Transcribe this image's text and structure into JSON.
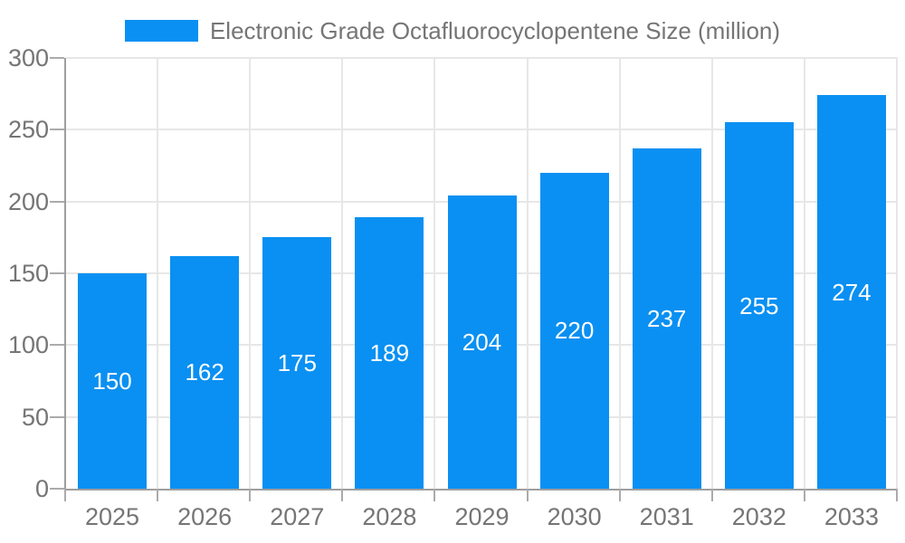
{
  "chart_data": {
    "type": "bar",
    "title": "Electronic Grade Octafluorocyclopentene Size (million)",
    "categories": [
      "2025",
      "2026",
      "2027",
      "2028",
      "2029",
      "2030",
      "2031",
      "2032",
      "2033"
    ],
    "values": [
      150,
      162,
      175,
      189,
      204,
      220,
      237,
      255,
      274
    ],
    "xlabel": "",
    "ylabel": "",
    "ylim": [
      0,
      300
    ],
    "ytick_step": 50,
    "yticks": [
      "0",
      "50",
      "100",
      "150",
      "200",
      "250",
      "300"
    ],
    "grid": true,
    "legend_position": "top-center",
    "colors": {
      "bar": "#0A90F2",
      "bar_label": "#FFFFFF",
      "axis": "#9E9E9E",
      "grid": "#E7E7E7",
      "tick": "#ABABAB",
      "text": "#757575"
    }
  }
}
